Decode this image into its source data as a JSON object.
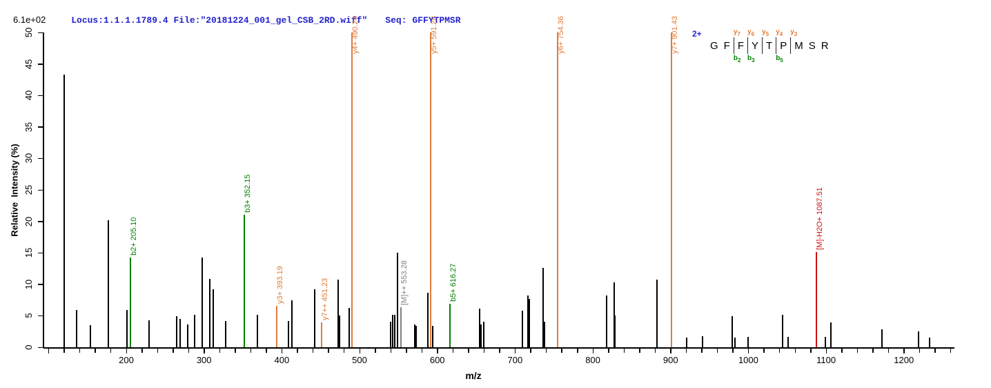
{
  "header": {
    "locus_file": "Locus:1.1.1.1789.4 File:\"20181224_001_gel_CSB_2RD.wiff\"",
    "seq_label": "Seq:",
    "seq_value": "GFFYTPMSR"
  },
  "colors": {
    "header_text": "#2222cc",
    "y_ion": "#e07b39",
    "b_ion": "#008000",
    "precursor": "#808080",
    "neutral_loss": "#cc1111",
    "peak": "#000000",
    "charge": "#2222ee",
    "axis": "#000000"
  },
  "sequence_panel": {
    "charge": "2+",
    "residues": [
      "G",
      "F",
      "F",
      "Y",
      "T",
      "P",
      "M",
      "S",
      "R"
    ],
    "cleavages": [
      {
        "before_index": 2,
        "y": "y7",
        "b": "b2"
      },
      {
        "before_index": 3,
        "y": "y6",
        "b": "b3"
      },
      {
        "before_index": 4,
        "y": "y5"
      },
      {
        "before_index": 5,
        "y": "y4",
        "b": "b5"
      },
      {
        "before_index": 6,
        "y": "y3"
      }
    ]
  },
  "chart_data": {
    "type": "bar",
    "subtype": "mass-spectrum-stick-plot",
    "title": "",
    "xlabel": "m/z",
    "ylabel": "Relative  Intensity (%)",
    "scale_label": "6.1e+02",
    "grid": false,
    "legend": "none",
    "x_range": [
      93.5,
      1265
    ],
    "y_range": [
      0,
      50
    ],
    "x_major_ticks": [
      100,
      200,
      300,
      400,
      500,
      600,
      700,
      800,
      900,
      1000,
      1100,
      1200
    ],
    "x_tick_labels": [
      "200",
      "300",
      "400",
      "500",
      "600",
      "700",
      "800",
      "900",
      "1000",
      "1100",
      "1200"
    ],
    "x_minor_step": 20,
    "y_ticks": [
      0,
      5,
      10,
      15,
      20,
      25,
      30,
      35,
      40,
      45,
      50
    ],
    "peaks": [
      {
        "mz": 120.1,
        "intensity": 43.3
      },
      {
        "mz": 136.4,
        "intensity": 5.9
      },
      {
        "mz": 153.9,
        "intensity": 3.5
      },
      {
        "mz": 177.2,
        "intensity": 20.2
      },
      {
        "mz": 200.9,
        "intensity": 5.9
      },
      {
        "mz": 229.6,
        "intensity": 4.3
      },
      {
        "mz": 264.5,
        "intensity": 4.9
      },
      {
        "mz": 268.9,
        "intensity": 4.5
      },
      {
        "mz": 279.0,
        "intensity": 3.6
      },
      {
        "mz": 287.8,
        "intensity": 5.1
      },
      {
        "mz": 297.5,
        "intensity": 14.3
      },
      {
        "mz": 307.1,
        "intensity": 10.9
      },
      {
        "mz": 311.8,
        "intensity": 9.2
      },
      {
        "mz": 327.8,
        "intensity": 4.2
      },
      {
        "mz": 368.5,
        "intensity": 5.1
      },
      {
        "mz": 408.9,
        "intensity": 4.2
      },
      {
        "mz": 412.7,
        "intensity": 7.5
      },
      {
        "mz": 442.2,
        "intensity": 9.2
      },
      {
        "mz": 472.4,
        "intensity": 10.8
      },
      {
        "mz": 474.5,
        "intensity": 5.0
      },
      {
        "mz": 486.6,
        "intensity": 6.3
      },
      {
        "mz": 539.6,
        "intensity": 4.1
      },
      {
        "mz": 542.8,
        "intensity": 5.1
      },
      {
        "mz": 545.0,
        "intensity": 5.2
      },
      {
        "mz": 548.4,
        "intensity": 15.0
      },
      {
        "mz": 570.6,
        "intensity": 3.6
      },
      {
        "mz": 572.4,
        "intensity": 3.4
      },
      {
        "mz": 588.0,
        "intensity": 8.7
      },
      {
        "mz": 593.7,
        "intensity": 3.4
      },
      {
        "mz": 654.3,
        "intensity": 6.1
      },
      {
        "mz": 656.4,
        "intensity": 3.6
      },
      {
        "mz": 659.6,
        "intensity": 4.1
      },
      {
        "mz": 709.3,
        "intensity": 5.8
      },
      {
        "mz": 716.4,
        "intensity": 8.2
      },
      {
        "mz": 718.0,
        "intensity": 7.7
      },
      {
        "mz": 736.2,
        "intensity": 12.6
      },
      {
        "mz": 737.5,
        "intensity": 4.1
      },
      {
        "mz": 817.6,
        "intensity": 8.2
      },
      {
        "mz": 827.3,
        "intensity": 10.3
      },
      {
        "mz": 828.6,
        "intensity": 5.0
      },
      {
        "mz": 882.6,
        "intensity": 10.8
      },
      {
        "mz": 901.5,
        "intensity": 5.9
      },
      {
        "mz": 921.0,
        "intensity": 1.5
      },
      {
        "mz": 941.2,
        "intensity": 1.8
      },
      {
        "mz": 979.0,
        "intensity": 4.9
      },
      {
        "mz": 982.6,
        "intensity": 1.5
      },
      {
        "mz": 999.4,
        "intensity": 1.6
      },
      {
        "mz": 1043.7,
        "intensity": 5.1
      },
      {
        "mz": 1050.8,
        "intensity": 1.6
      },
      {
        "mz": 1098.9,
        "intensity": 1.6
      },
      {
        "mz": 1106.0,
        "intensity": 3.9
      },
      {
        "mz": 1172.0,
        "intensity": 2.9
      },
      {
        "mz": 1218.6,
        "intensity": 2.5
      },
      {
        "mz": 1232.8,
        "intensity": 1.5
      }
    ],
    "labeled_peaks": [
      {
        "mz": 205.1,
        "intensity": 14.2,
        "type": "b",
        "label": "b2+ 205.10"
      },
      {
        "mz": 352.15,
        "intensity": 21.1,
        "type": "b",
        "label": "b3+ 352.15"
      },
      {
        "mz": 393.19,
        "intensity": 6.6,
        "type": "y",
        "label": "y3+ 393.19"
      },
      {
        "mz": 451.23,
        "intensity": 4.0,
        "type": "y",
        "label": "y7++ 451.23"
      },
      {
        "mz": 490.24,
        "intensity": 50.0,
        "type": "y",
        "label": "y4+ 490.24"
      },
      {
        "mz": 553.28,
        "intensity": 6.4,
        "type": "precursor",
        "label": "[M]++ 553.28"
      },
      {
        "mz": 591.28,
        "intensity": 50.0,
        "type": "y",
        "label": "y5+ 591.28"
      },
      {
        "mz": 616.27,
        "intensity": 6.9,
        "type": "b",
        "label": "b5+ 616.27"
      },
      {
        "mz": 754.36,
        "intensity": 50.0,
        "type": "y",
        "label": "y6+ 754.36"
      },
      {
        "mz": 901.43,
        "intensity": 50.0,
        "type": "y",
        "label": "y7+ 901.43"
      },
      {
        "mz": 1087.51,
        "intensity": 15.1,
        "type": "loss",
        "label": "[M]-H2O+ 1087.51"
      }
    ]
  }
}
